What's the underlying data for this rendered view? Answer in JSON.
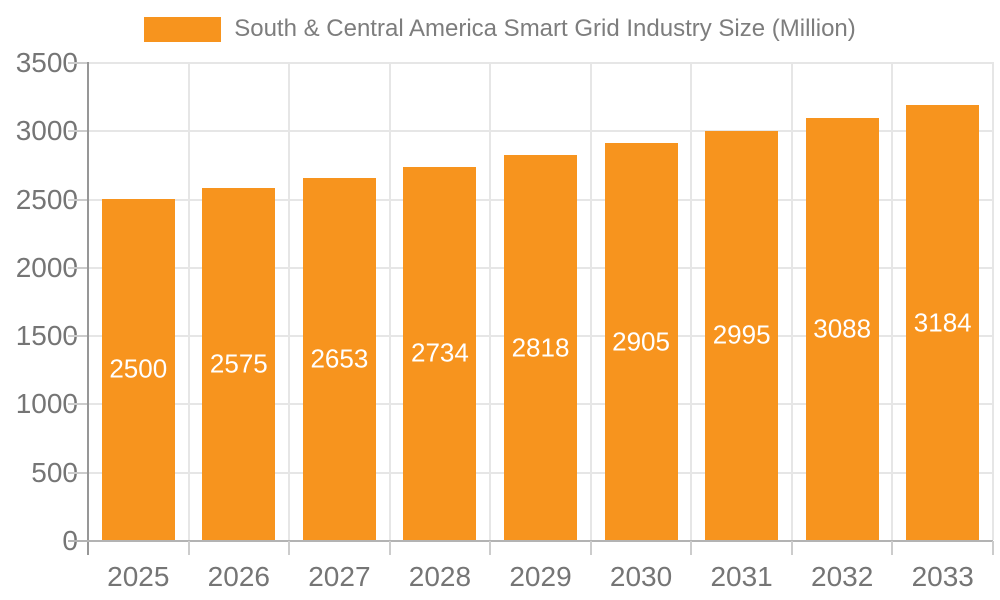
{
  "legend": {
    "label": "South & Central America Smart Grid Industry Size (Million)",
    "swatch_color": "#F7941E"
  },
  "chart_data": {
    "type": "bar",
    "title": "South & Central America Smart Grid Industry Size (Million)",
    "categories": [
      "2025",
      "2026",
      "2027",
      "2028",
      "2029",
      "2030",
      "2031",
      "2032",
      "2033"
    ],
    "values": [
      2500,
      2575,
      2653,
      2734,
      2818,
      2905,
      2995,
      3088,
      3184
    ],
    "value_labels": [
      "2500",
      "2575",
      "2653",
      "2734",
      "2818",
      "2905",
      "2995",
      "3088",
      "3184"
    ],
    "ytick_labels": [
      "0",
      "500",
      "1000",
      "1500",
      "2000",
      "2500",
      "3000",
      "3500"
    ],
    "yticks": [
      0,
      500,
      1000,
      1500,
      2000,
      2500,
      3000,
      3500
    ],
    "xlabel": "",
    "ylabel": "",
    "ylim": [
      0,
      3500
    ],
    "grid": true,
    "legend_position": "top",
    "bar_color": "#F7941E",
    "value_label_color": "#ffffff",
    "axis_text_color": "#757575",
    "gridline_color": "#e6e6e6"
  }
}
